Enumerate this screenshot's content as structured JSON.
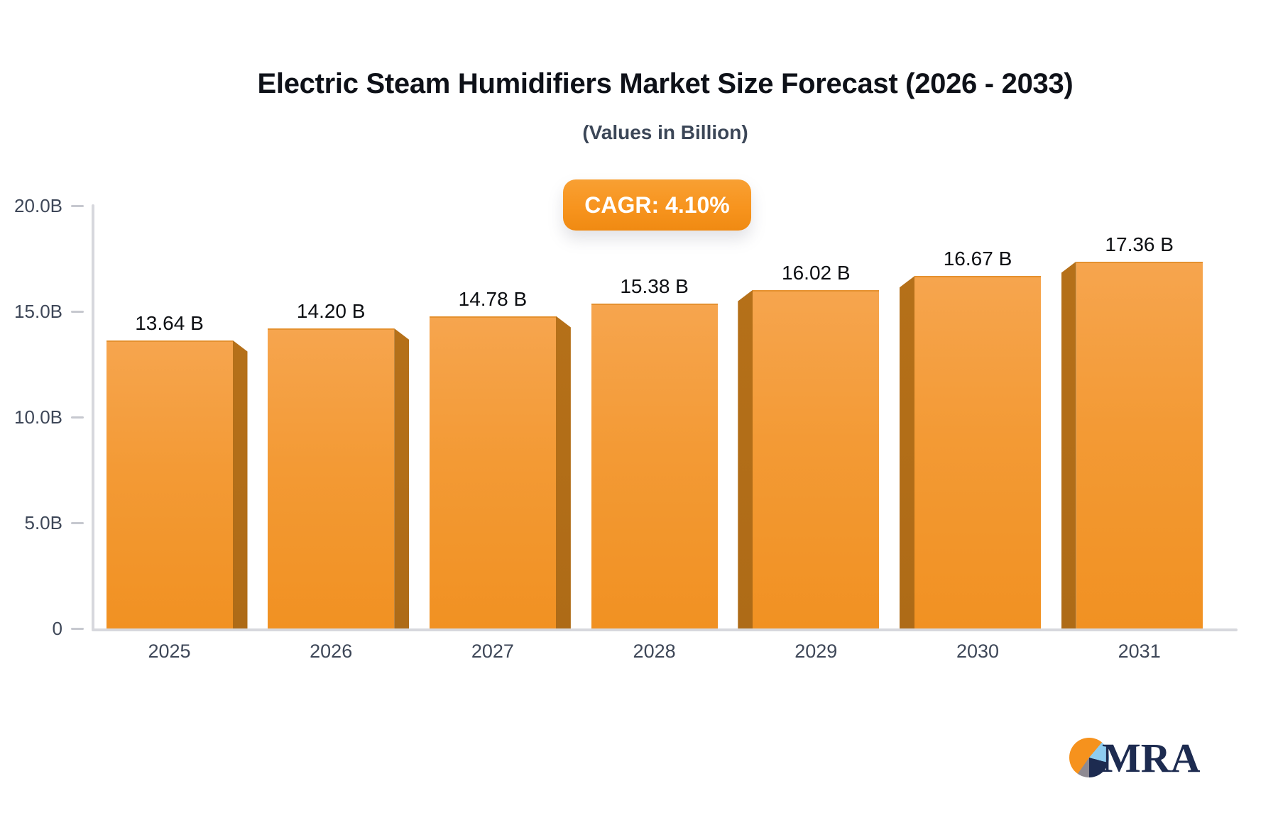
{
  "chart_data": {
    "type": "bar",
    "title": "Electric Steam Humidifiers Market Size Forecast (2026 - 2033)",
    "subtitle": "(Values in Billion)",
    "cagr_label": "CAGR: 4.10%",
    "categories": [
      "2025",
      "2026",
      "2027",
      "2028",
      "2029",
      "2030",
      "2031"
    ],
    "values": [
      13.64,
      14.2,
      14.78,
      15.38,
      16.02,
      16.67,
      17.36
    ],
    "value_labels": [
      "13.64 B",
      "14.20 B",
      "14.78 B",
      "15.38 B",
      "16.02 B",
      "16.67 B",
      "17.36 B"
    ],
    "unit": "Billion",
    "ylim": [
      0,
      20
    ],
    "yticks": [
      {
        "value": 0,
        "label": "0"
      },
      {
        "value": 5,
        "label": "5.0B"
      },
      {
        "value": 10,
        "label": "10.0B"
      },
      {
        "value": 15,
        "label": "15.0B"
      },
      {
        "value": 20,
        "label": "20.0B"
      }
    ],
    "grid": false,
    "legend": null,
    "bar_3d_sides": [
      "right",
      "right",
      "right",
      "none",
      "left",
      "left",
      "left"
    ]
  },
  "logo": {
    "text": "MRA"
  },
  "colors": {
    "bar_face_top": "#f6a54e",
    "bar_face_bottom": "#f19122",
    "bar_side": "#ae6b17",
    "bar_top_edge": "#e5912f",
    "badge_bg": "#f7941e",
    "badge_text": "#ffffff",
    "axis_line": "#d7d8dd",
    "tick_dash": "#c6c8cf",
    "axis_label": "#3e4758",
    "value_label": "#0d0f13",
    "title": "#0e1118",
    "subtitle": "#3b4657",
    "logo_navy": "#1d2b50",
    "logo_lightblue": "#8ecdf0",
    "logo_gray": "#8e8a92",
    "logo_orange": "#f6921d"
  }
}
